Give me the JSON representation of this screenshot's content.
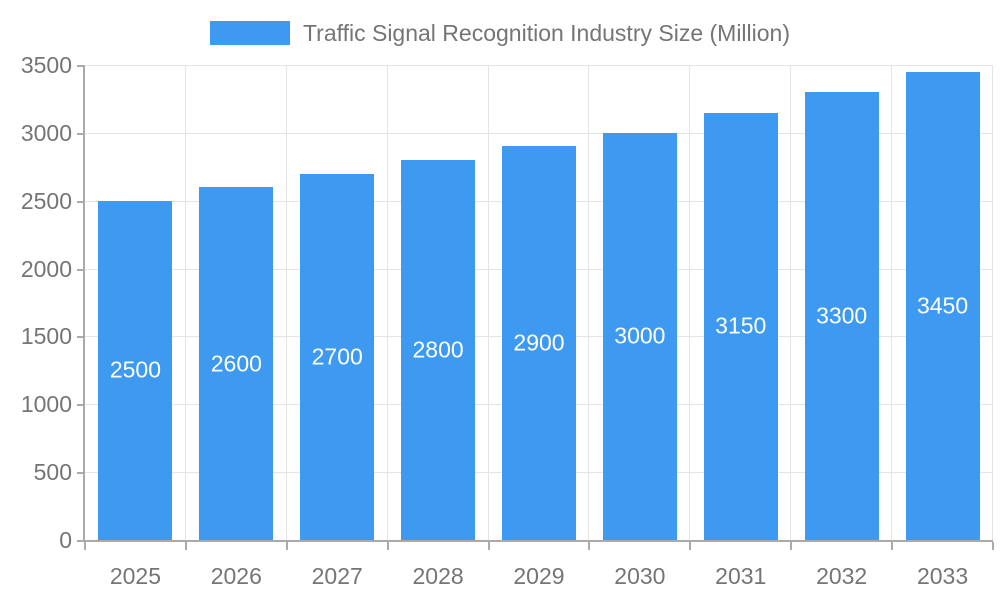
{
  "chart_data": {
    "type": "bar",
    "title": "Traffic Signal Recognition Industry Size (Million)",
    "legend": [
      "Traffic Signal Recognition Industry Size (Million)"
    ],
    "legend_position": "top",
    "categories": [
      "2025",
      "2026",
      "2027",
      "2028",
      "2029",
      "2030",
      "2031",
      "2032",
      "2033"
    ],
    "series": [
      {
        "name": "Traffic Signal Recognition Industry Size (Million)",
        "values": [
          2500,
          2600,
          2700,
          2800,
          2900,
          3000,
          3150,
          3300,
          3450
        ]
      }
    ],
    "bar_labels": [
      "2500",
      "2600",
      "2700",
      "2800",
      "2900",
      "3000",
      "3150",
      "3300",
      "3450"
    ],
    "xlabel": "",
    "ylabel": "",
    "ylim": [
      0,
      3500
    ],
    "ytick_step": 500,
    "yticks": [
      0,
      500,
      1000,
      1500,
      2000,
      2500,
      3000,
      3500
    ],
    "ytick_labels": [
      "0",
      "500",
      "1000",
      "1500",
      "2000",
      "2500",
      "3000",
      "3500"
    ],
    "grid": true
  },
  "colors": {
    "bar": "#3d9af0",
    "bar_label_text": "#ffffff",
    "grid_line": "#e4e4e4",
    "axis_line": "#aaaaaa",
    "axis_text": "#757575",
    "legend_text": "#757575",
    "background": "#ffffff"
  }
}
